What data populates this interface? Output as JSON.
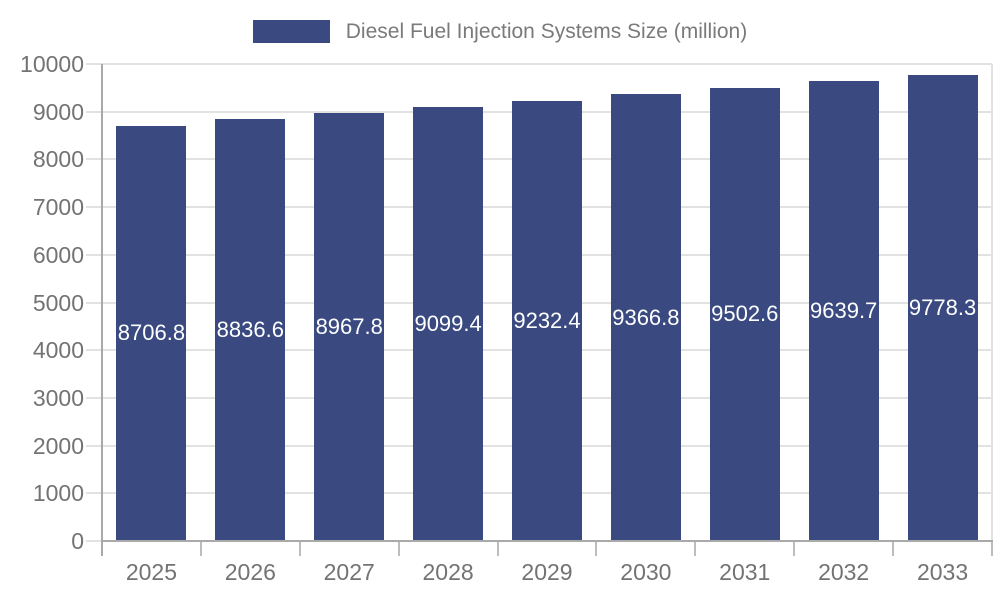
{
  "chart_data": {
    "type": "bar",
    "title": "Diesel Fuel Injection Systems Size (million)",
    "categories": [
      "2025",
      "2026",
      "2027",
      "2028",
      "2029",
      "2030",
      "2031",
      "2032",
      "2033"
    ],
    "values": [
      8706.8,
      8836.6,
      8967.8,
      9099.4,
      9232.4,
      9366.8,
      9502.6,
      9639.7,
      9778.3
    ],
    "value_labels": [
      "8706.8",
      "8836.6",
      "8967.8",
      "9099.4",
      "9232.4",
      "9366.8",
      "9502.6",
      "9639.7",
      "9778.3"
    ],
    "xlabel": "",
    "ylabel": "",
    "ylim": [
      0,
      10000
    ],
    "ytick_step": 1000,
    "ytick_labels": [
      "0",
      "1000",
      "2000",
      "3000",
      "4000",
      "5000",
      "6000",
      "7000",
      "8000",
      "9000",
      "10000"
    ],
    "grid": true,
    "legend_position": "top-center",
    "value_label_position": "inside-center"
  },
  "legend": {
    "label": "Diesel Fuel Injection Systems Size (million)"
  },
  "colors": {
    "bar": "#3A4A81",
    "bar_label": "#FFFFFF",
    "gridline": "#E2E2E2",
    "axis_line": "#A9A9A9",
    "x_tick": "#BDBDBD",
    "tick_label": "#737373",
    "legend_text": "#7A7A7A",
    "background": "#FFFFFF"
  }
}
